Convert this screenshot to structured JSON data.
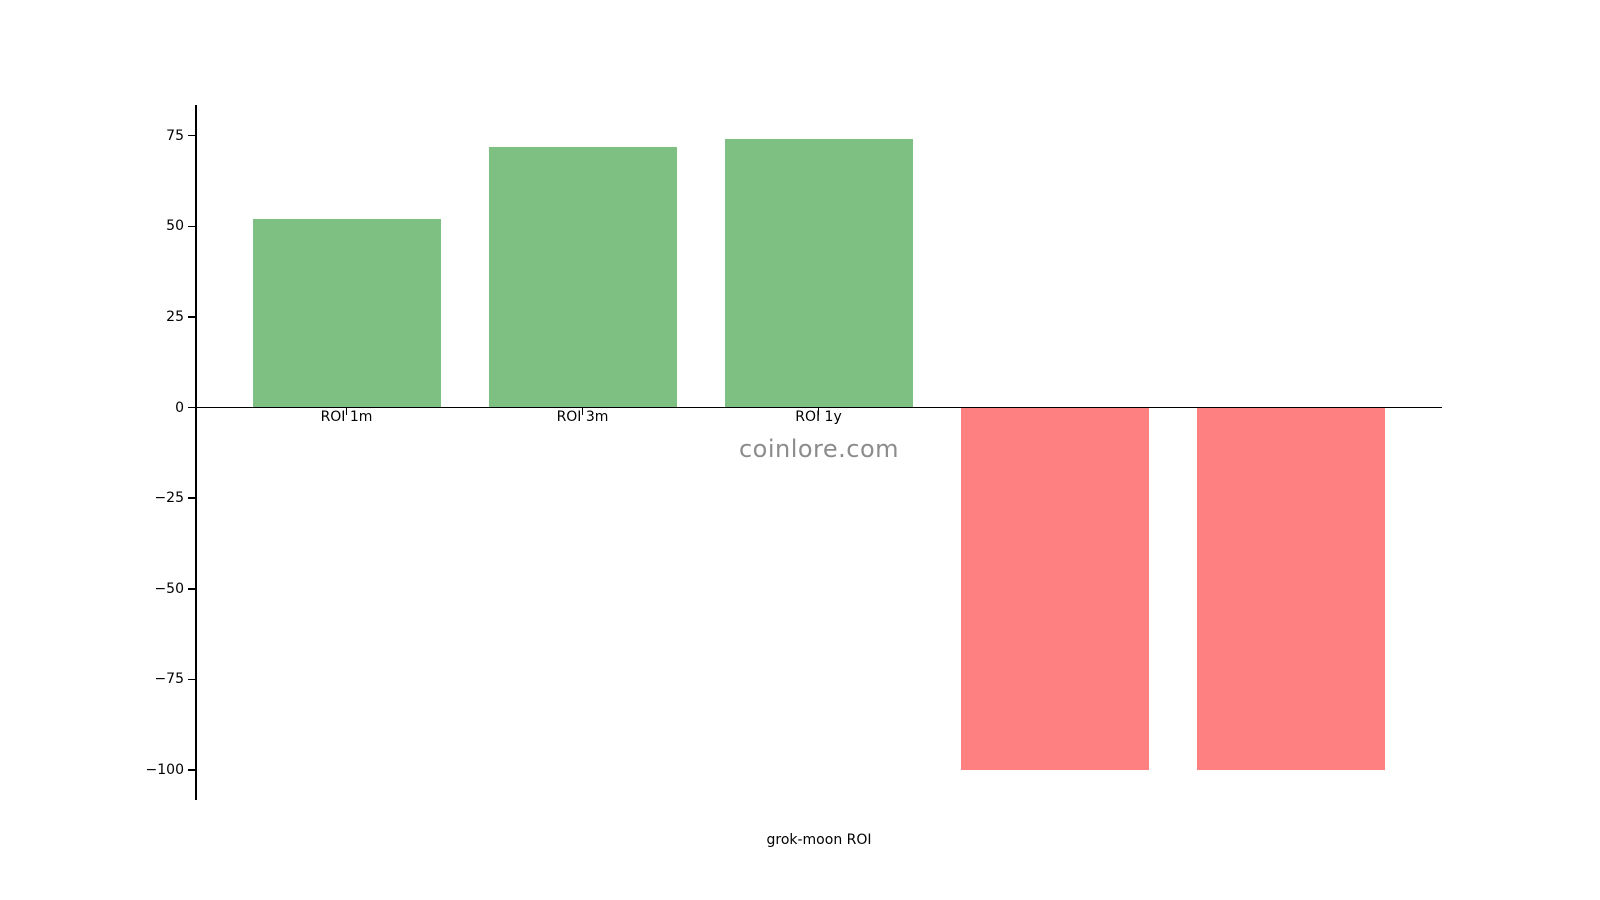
{
  "watermark": {
    "text": "coinlore.com",
    "color": "#8c8c8c"
  },
  "footer_title": "grok-moon ROI",
  "colors": {
    "positive_bar": "#7dc081",
    "negative_bar": "#ff8080",
    "axis": "#000000",
    "tick_label": "#000000",
    "background": "#ffffff"
  },
  "chart_data": {
    "type": "bar",
    "title": "grok-moon ROI",
    "xlabel": "",
    "ylabel": "",
    "categories": [
      "ROI 1m",
      "ROI 3m",
      "ROI 1y",
      "",
      ""
    ],
    "values": [
      52,
      72,
      74,
      -100,
      -100
    ],
    "bar_colors": [
      "#7dc081",
      "#7dc081",
      "#7dc081",
      "#ff8080",
      "#ff8080"
    ],
    "yticks": [
      {
        "value": 75,
        "label": "75"
      },
      {
        "value": 50,
        "label": "50"
      },
      {
        "value": 25,
        "label": "25"
      },
      {
        "value": 0,
        "label": "0"
      },
      {
        "value": -25,
        "label": "−25"
      },
      {
        "value": -50,
        "label": "−50"
      },
      {
        "value": -75,
        "label": "−75"
      },
      {
        "value": -100,
        "label": "−100"
      }
    ],
    "ylim": [
      -108,
      83
    ],
    "grid": false,
    "legend": false,
    "watermark": "coinlore.com",
    "notes": "Bars at or below 0 are red; unlabeled x positions 4 and 5 both equal -100"
  }
}
